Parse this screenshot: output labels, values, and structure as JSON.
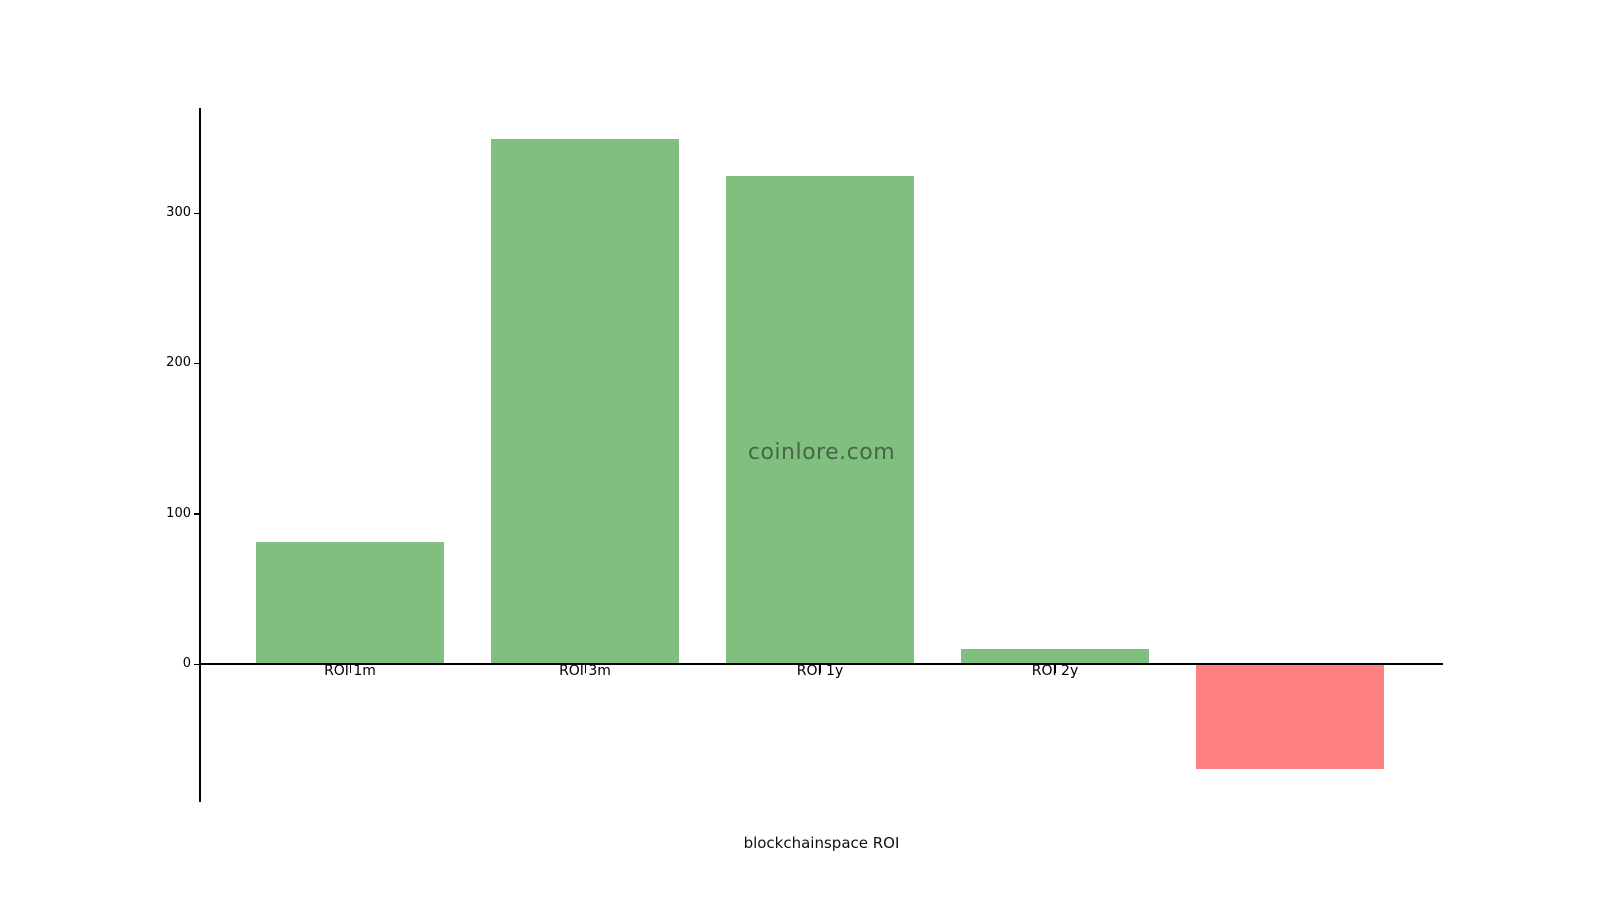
{
  "watermark": {
    "text": "coinlore.com"
  },
  "chart_data": {
    "type": "bar",
    "title": "blockchainspace ROI",
    "categories": [
      "ROI 1m",
      "ROI 3m",
      "ROI 1y",
      "ROI 2y",
      ""
    ],
    "values": [
      81,
      349,
      325,
      10,
      -70
    ],
    "yticks": [
      0,
      100,
      200,
      300
    ],
    "ylim": [
      -92,
      370
    ],
    "xlabel": "blockchainspace ROI",
    "ylabel": "",
    "grid": false,
    "legend": null,
    "colors": {
      "positive_bar": "#80bf80",
      "negative_bar": "#ff8080",
      "axis": "#000000"
    }
  }
}
